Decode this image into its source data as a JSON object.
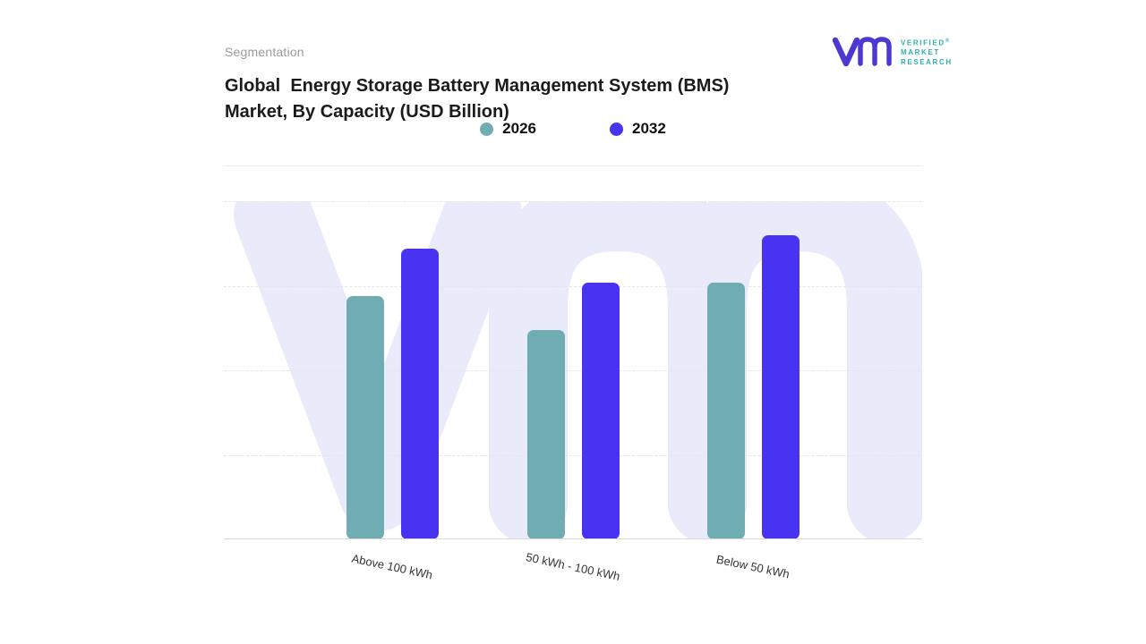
{
  "header": {
    "eyebrow": "Segmentation",
    "title": "Global  Energy Storage Battery Management System (BMS) Market, By Capacity (USD Billion)"
  },
  "logo": {
    "brand_lines": [
      "VERIFIED",
      "MARKET",
      "RESEARCH"
    ],
    "registered_mark": "®",
    "mark_color": "#4b39d2",
    "text_color": "#2fafaa"
  },
  "legend": [
    {
      "label": "2026",
      "color": "#6fadb2"
    },
    {
      "label": "2032",
      "color": "#4733f0"
    }
  ],
  "chart_data": {
    "type": "bar",
    "title": "Global Energy Storage Battery Management System (BMS) Market, By Capacity (USD Billion)",
    "categories": [
      "Above 100 kWh",
      "50 kWh - 100 kWh",
      "Below 50 kWh"
    ],
    "series": [
      {
        "name": "2026",
        "color": "#6fadb2",
        "values": [
          72,
          62,
          76
        ]
      },
      {
        "name": "2032",
        "color": "#4733f0",
        "values": [
          86,
          76,
          90
        ]
      }
    ],
    "xlabel": "",
    "ylabel": "",
    "ylim": [
      0,
      100
    ],
    "value_scale": "relative height, no numeric axis shown in figure",
    "grid": "horizontal dashed",
    "legend_position": "top center"
  },
  "colors": {
    "watermark": "#eaebfa",
    "baseline": "#d9d9d9",
    "gridline": "#e6e6e6"
  }
}
